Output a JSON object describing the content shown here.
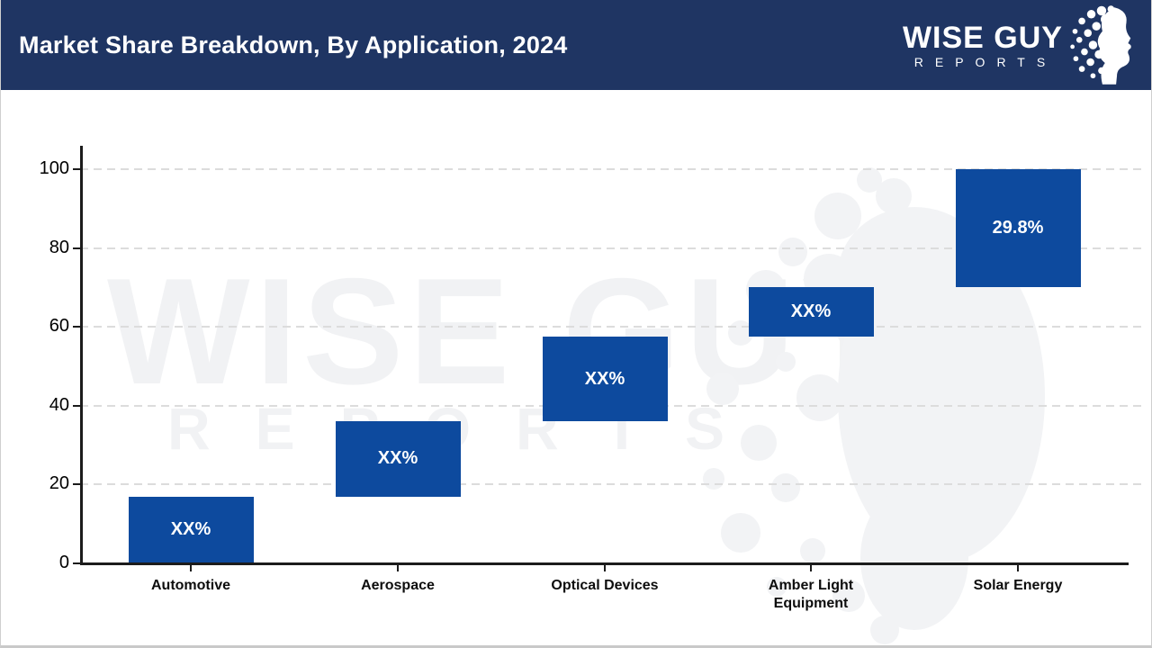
{
  "header": {
    "title": "Market Share Breakdown, By Application, 2024",
    "logo": {
      "line1": "WISE GUY",
      "line2": "REPORTS"
    }
  },
  "watermark": {
    "line1": "WISE GUY",
    "line2": "REPORTS"
  },
  "chart_data": {
    "type": "bar",
    "subtype": "waterfall-floating-bars",
    "title": "Market Share Breakdown, By Application, 2024",
    "categories": [
      "Automotive",
      "Aerospace",
      "Optical Devices",
      "Amber Light Equipment",
      "Solar Energy"
    ],
    "segments": [
      {
        "category": "Automotive",
        "start": 0,
        "end": 17,
        "label": "XX%"
      },
      {
        "category": "Aerospace",
        "start": 17,
        "end": 36,
        "label": "XX%"
      },
      {
        "category": "Optical Devices",
        "start": 36,
        "end": 57.5,
        "label": "XX%"
      },
      {
        "category": "Amber Light Equipment",
        "start": 57.5,
        "end": 70.2,
        "label": "XX%"
      },
      {
        "category": "Solar Energy",
        "start": 70.2,
        "end": 100,
        "label": "29.8%"
      }
    ],
    "yticks": [
      0,
      20,
      40,
      60,
      80,
      100
    ],
    "ylim": [
      0,
      100
    ],
    "xlabel": "",
    "ylabel": "",
    "grid": "horizontal-dashed",
    "legend": "none"
  },
  "colors": {
    "header_bg": "#1f3563",
    "bar": "#0d4a9e",
    "axis": "#1c1c1c",
    "grid": "#dcdcdc",
    "watermark": "#f1f2f4",
    "label_on_bar": "#ffffff"
  }
}
